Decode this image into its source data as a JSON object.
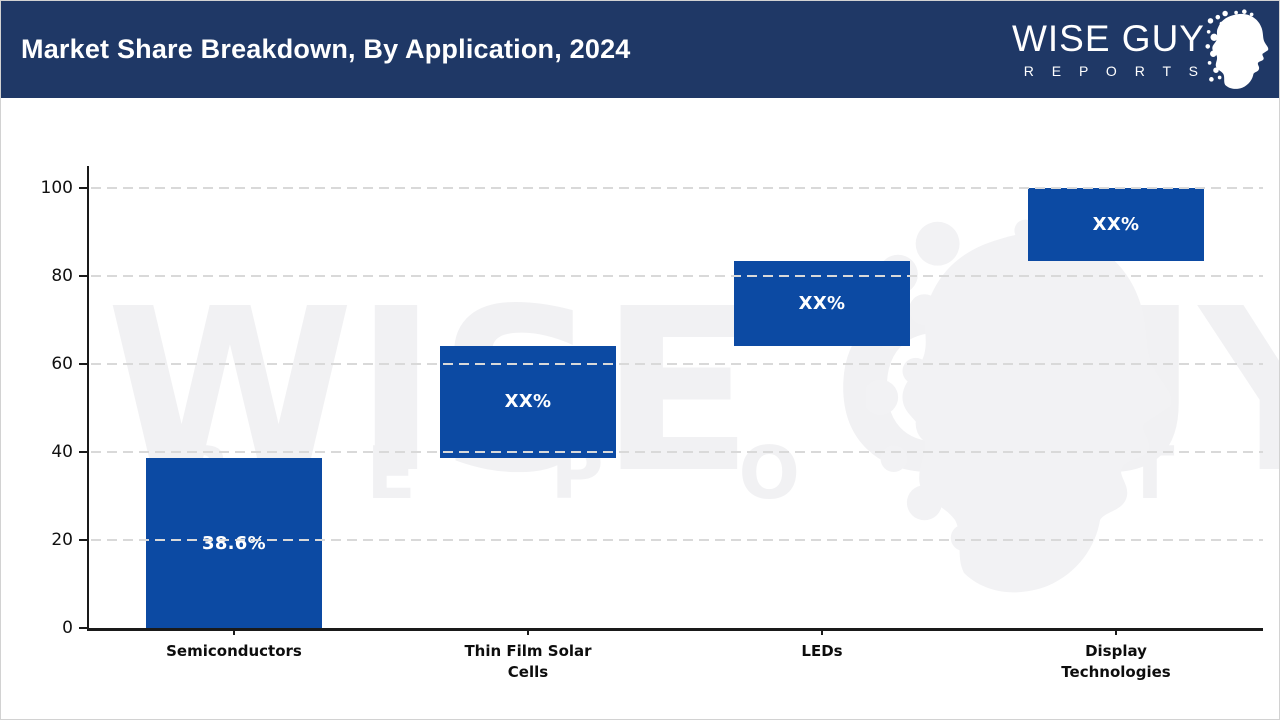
{
  "header": {
    "title": "Market Share Breakdown, By Application, 2024",
    "bg_color": "#1F3866",
    "logo": {
      "line1": "WISE GUY",
      "line2": "R E P O R T S"
    }
  },
  "watermark": {
    "line1": "WISE GUY",
    "line2": "R E P O R T S"
  },
  "chart_data": {
    "type": "bar",
    "subtype": "floating-segment-waterfall",
    "title": "Market Share Breakdown, By Application, 2024",
    "categories": [
      "Semiconductors",
      "Thin Film Solar Cells",
      "LEDs",
      "Display Technologies"
    ],
    "category_label_lines": [
      [
        "Semiconductors"
      ],
      [
        "Thin Film Solar",
        "Cells"
      ],
      [
        "LEDs"
      ],
      [
        "Display",
        "Technologies"
      ]
    ],
    "segments": [
      {
        "category": "Semiconductors",
        "label": "38.6%",
        "start": 0,
        "end": 38.6
      },
      {
        "category": "Thin Film Solar Cells",
        "label": "XX%",
        "start": 38.6,
        "end": 64.2
      },
      {
        "category": "LEDs",
        "label": "XX%",
        "start": 64.2,
        "end": 83.5
      },
      {
        "category": "Display Technologies",
        "label": "XX%",
        "start": 83.5,
        "end": 100
      }
    ],
    "ylim": [
      0,
      100
    ],
    "yticks": [
      0,
      20,
      40,
      60,
      80,
      100
    ],
    "xlabel": "",
    "ylabel": "",
    "grid": "horizontal-dashed",
    "legend": "none",
    "bar_color": "#0C4AA3",
    "bar_label_color": "#ffffff"
  }
}
